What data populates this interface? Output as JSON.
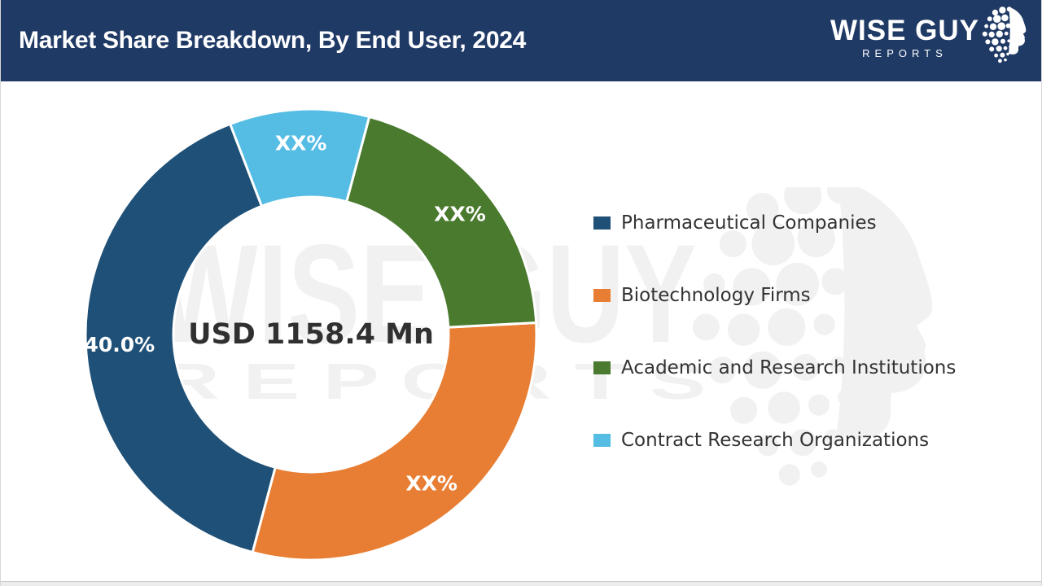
{
  "header": {
    "title": "Market Share Breakdown, By End User, 2024",
    "logo": {
      "name": "WISE GUY",
      "subtitle": "REPORTS"
    }
  },
  "watermark": {
    "line1": "WISE GUY",
    "line2": "R E P O R T S"
  },
  "chart_data": {
    "type": "pie",
    "subtype": "donut",
    "title": "Market Share Breakdown, By End User, 2024",
    "center_label": "USD 1158.4 Mn",
    "slices": [
      {
        "label": "Pharmaceutical Companies",
        "value_pct": 40.0,
        "display_label": "40.0%",
        "color": "#1f5077",
        "estimated": false
      },
      {
        "label": "Biotechnology Firms",
        "value_pct": 30.0,
        "display_label": "XX%",
        "color": "#e87e33",
        "estimated": true
      },
      {
        "label": "Academic and Research Institutions",
        "value_pct": 20.0,
        "display_label": "XX%",
        "color": "#4a7a2e",
        "estimated": true
      },
      {
        "label": "Contract Research Organizations",
        "value_pct": 10.0,
        "display_label": "XX%",
        "color": "#55bce4",
        "estimated": true
      }
    ],
    "layout": {
      "start_angle_deg_cw_from_north": 339,
      "direction": "counterclockwise",
      "outer_radius_px": 277,
      "inner_radius_ratio": 0.61,
      "label_radius_ratio": 0.85,
      "slice_gap_color": "#ffffff",
      "label_text_color": "#ffffff",
      "legend_position": "right"
    }
  },
  "colors": {
    "header_bg": "#203a66",
    "center_text": "#303030",
    "legend_text": "#333333",
    "watermark": "#f1f1f1",
    "border": "#d6d6d6"
  }
}
